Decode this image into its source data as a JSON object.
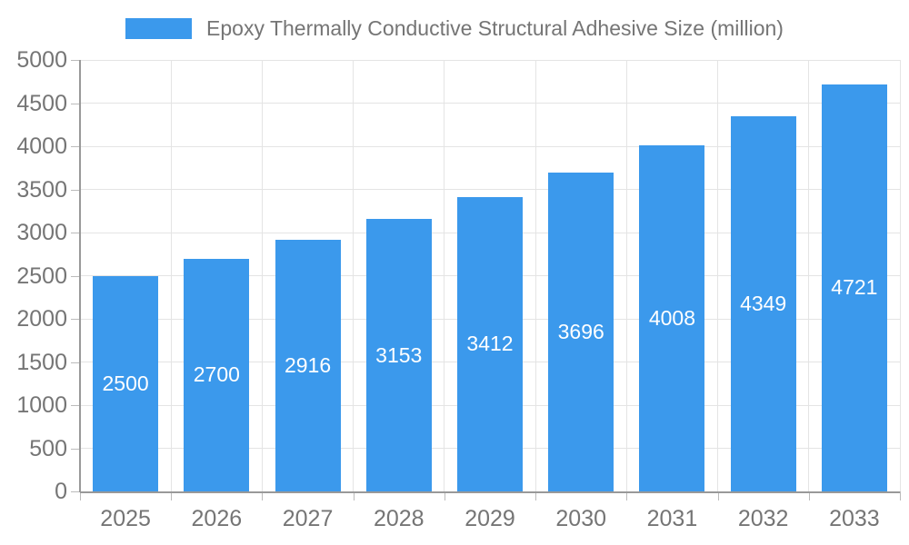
{
  "legend": {
    "label": "Epoxy Thermally Conductive Structural Adhesive Size (million)"
  },
  "colors": {
    "bar": "#3B99EC",
    "bar_label": "#ffffff",
    "axis_line": "#999999",
    "tick_line": "#bbbbbb",
    "grid_line": "#e4e4e4",
    "axis_text": "#757575",
    "background": "#ffffff"
  },
  "chart_data": {
    "type": "bar",
    "title": "Epoxy Thermally Conductive Structural Adhesive Size (million)",
    "categories": [
      "2025",
      "2026",
      "2027",
      "2028",
      "2029",
      "2030",
      "2031",
      "2032",
      "2033"
    ],
    "values": [
      2500,
      2700,
      2916,
      3153,
      3412,
      3696,
      4008,
      4349,
      4721
    ],
    "series": [
      {
        "name": "Epoxy Thermally Conductive Structural Adhesive Size (million)",
        "values": [
          2500,
          2700,
          2916,
          3153,
          3412,
          3696,
          4008,
          4349,
          4721
        ]
      }
    ],
    "xlabel": "",
    "ylabel": "",
    "ylim": [
      0,
      5000
    ],
    "ytick_step": 500,
    "ytick_labels": [
      "0",
      "500",
      "1000",
      "1500",
      "2000",
      "2500",
      "3000",
      "3500",
      "4000",
      "4500",
      "5000"
    ],
    "grid": true,
    "grid_horizontal": true,
    "grid_vertical": true,
    "legend_position": "top-center",
    "data_labels": "inside-center"
  }
}
